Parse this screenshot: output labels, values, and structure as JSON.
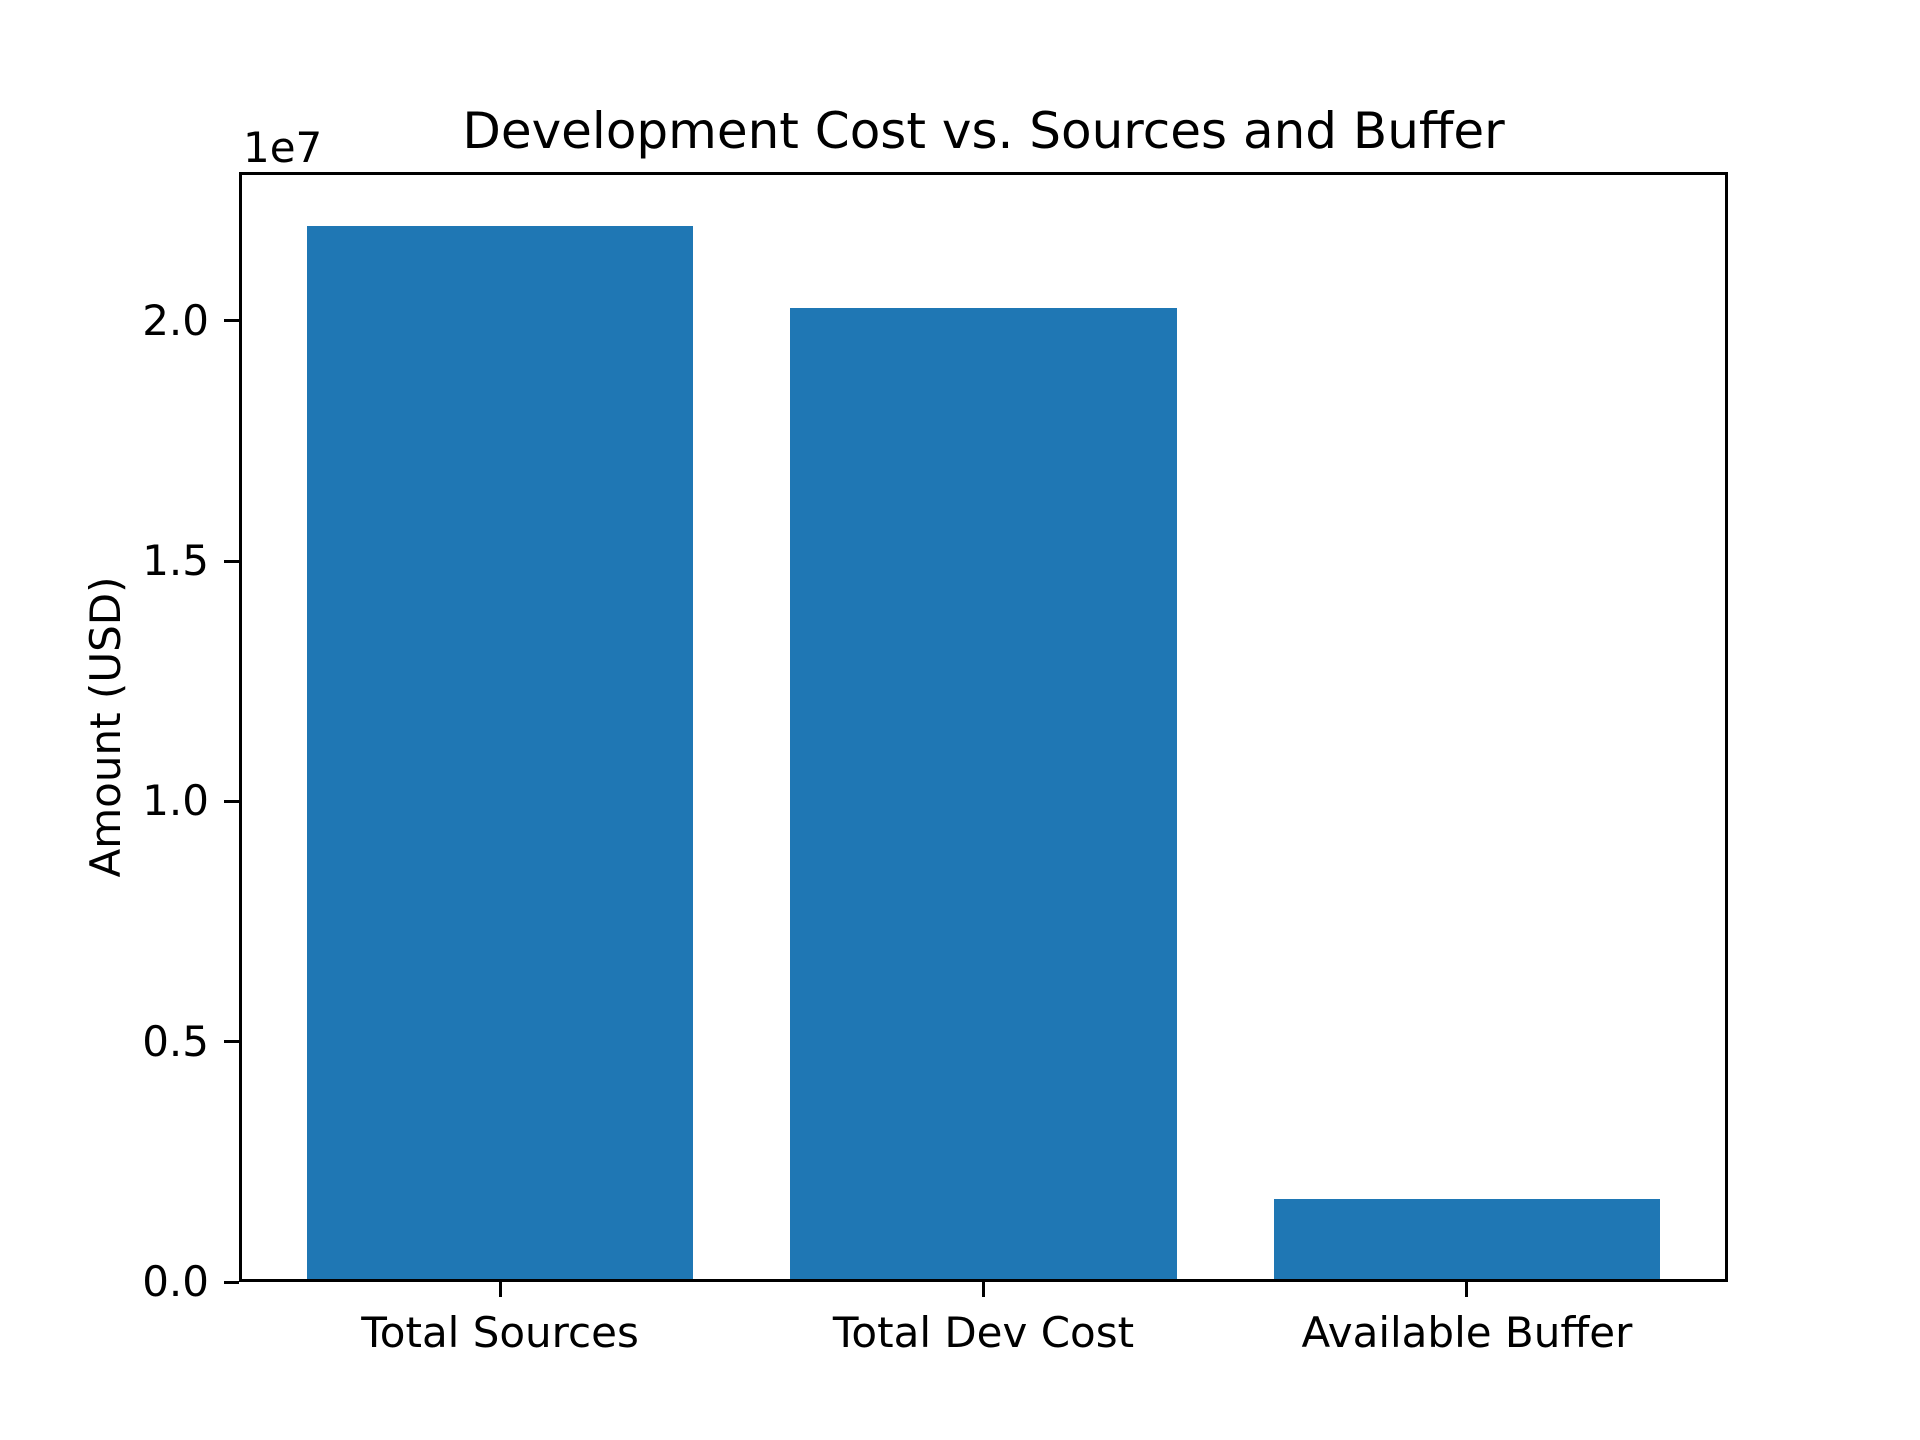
{
  "figure": {
    "background": "#ffffff",
    "text_color": "#000000",
    "spine_color": "#000000"
  },
  "chart_data": {
    "type": "bar",
    "title": "Development Cost vs. Sources and Buffer",
    "xlabel": "",
    "ylabel": "Amount (USD)",
    "offset_text": "1e7",
    "categories": [
      "Total Sources",
      "Total Dev Cost",
      "Available Buffer"
    ],
    "values": [
      21980000,
      20260000,
      1720000
    ],
    "bar_color": "#1f77b4",
    "ylim": [
      0,
      23100000
    ],
    "yticks": {
      "values": [
        0,
        5000000,
        10000000,
        15000000,
        20000000
      ],
      "labels": [
        "0.0",
        "0.5",
        "1.0",
        "1.5",
        "2.0"
      ]
    },
    "grid": false,
    "legend": null
  }
}
